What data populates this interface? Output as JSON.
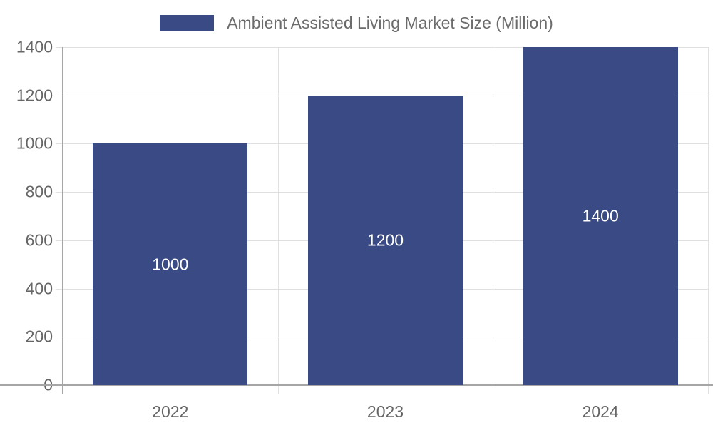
{
  "chart_data": {
    "type": "bar",
    "title": "",
    "legend_label": "Ambient Assisted Living Market Size (Million)",
    "categories": [
      "2022",
      "2023",
      "2024"
    ],
    "values": [
      1000,
      1200,
      1400
    ],
    "value_labels": [
      "1000",
      "1200",
      "1400"
    ],
    "ytick_labels": [
      "0",
      "200",
      "400",
      "600",
      "800",
      "1000",
      "1200",
      "1400"
    ],
    "yticks": [
      0,
      200,
      400,
      600,
      800,
      1000,
      1200,
      1400
    ],
    "ylim": [
      0,
      1400
    ],
    "xlabel": "",
    "ylabel": "",
    "grid": "on",
    "legend_position": "top-center",
    "colors": {
      "bar_fill": "#3a4a84",
      "bar_value_text": "#ffffff",
      "grid_line": "#e0e0e0",
      "axis_line": "#a6a6a6",
      "tick_text": "#666666",
      "legend_text": "#6b6b6b",
      "background": "#ffffff"
    }
  }
}
